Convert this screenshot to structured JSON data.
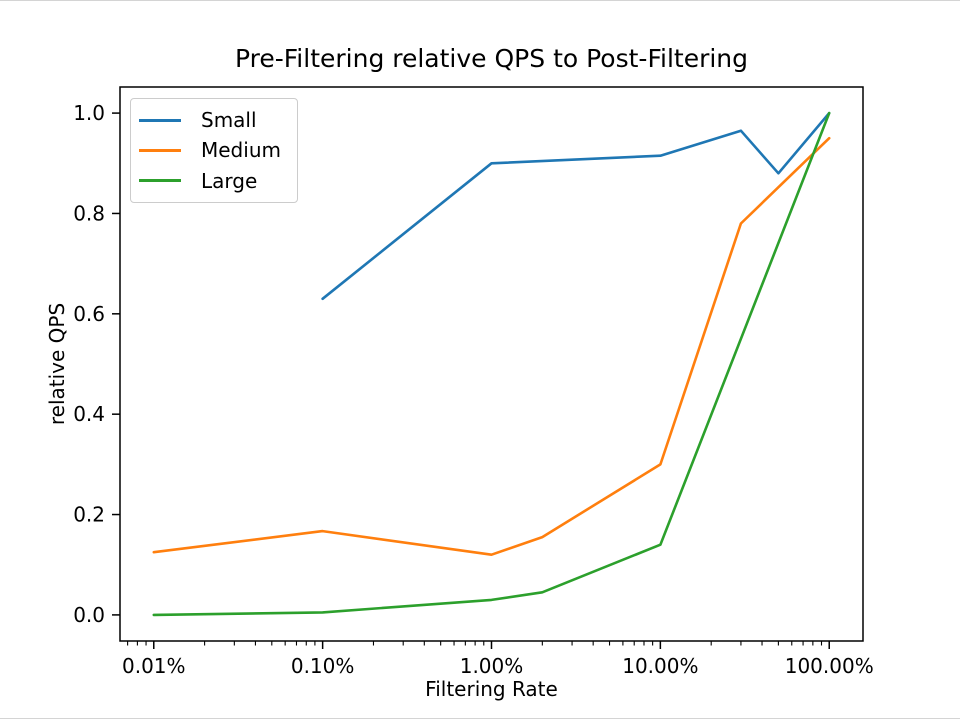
{
  "chart_data": {
    "type": "line",
    "title": "Pre-Filtering relative QPS to Post-Filtering",
    "xlabel": "Filtering Rate",
    "ylabel": "relative QPS",
    "x_scale": "log",
    "x_unit": "percent",
    "grid": false,
    "legend_position": "upper-left",
    "xlim_pct": [
      0.00631,
      158.49
    ],
    "ylim": [
      -0.052,
      1.052
    ],
    "x_ticks": [
      {
        "value": 0.01,
        "label": "0.01%"
      },
      {
        "value": 0.1,
        "label": "0.10%"
      },
      {
        "value": 1.0,
        "label": "1.00%"
      },
      {
        "value": 10.0,
        "label": "10.00%"
      },
      {
        "value": 100.0,
        "label": "100.00%"
      }
    ],
    "y_ticks": [
      {
        "value": 0.0,
        "label": "0.0"
      },
      {
        "value": 0.2,
        "label": "0.2"
      },
      {
        "value": 0.4,
        "label": "0.4"
      },
      {
        "value": 0.6,
        "label": "0.6"
      },
      {
        "value": 0.8,
        "label": "0.8"
      },
      {
        "value": 1.0,
        "label": "1.0"
      }
    ],
    "series": [
      {
        "name": "Small",
        "color": "#1f77b4",
        "points": [
          [
            0.1,
            0.63
          ],
          [
            1.0,
            0.9
          ],
          [
            10.0,
            0.915
          ],
          [
            30.0,
            0.965
          ],
          [
            50.0,
            0.88
          ],
          [
            100.0,
            1.0
          ]
        ]
      },
      {
        "name": "Medium",
        "color": "#ff7f0e",
        "points": [
          [
            0.01,
            0.125
          ],
          [
            0.1,
            0.167
          ],
          [
            1.0,
            0.12
          ],
          [
            2.0,
            0.155
          ],
          [
            10.0,
            0.3
          ],
          [
            30.0,
            0.78
          ],
          [
            100.0,
            0.95
          ]
        ]
      },
      {
        "name": "Large",
        "color": "#2ca02c",
        "points": [
          [
            0.01,
            0.0
          ],
          [
            0.1,
            0.005
          ],
          [
            1.0,
            0.03
          ],
          [
            2.0,
            0.045
          ],
          [
            10.0,
            0.14
          ],
          [
            100.0,
            1.0
          ]
        ]
      }
    ]
  }
}
